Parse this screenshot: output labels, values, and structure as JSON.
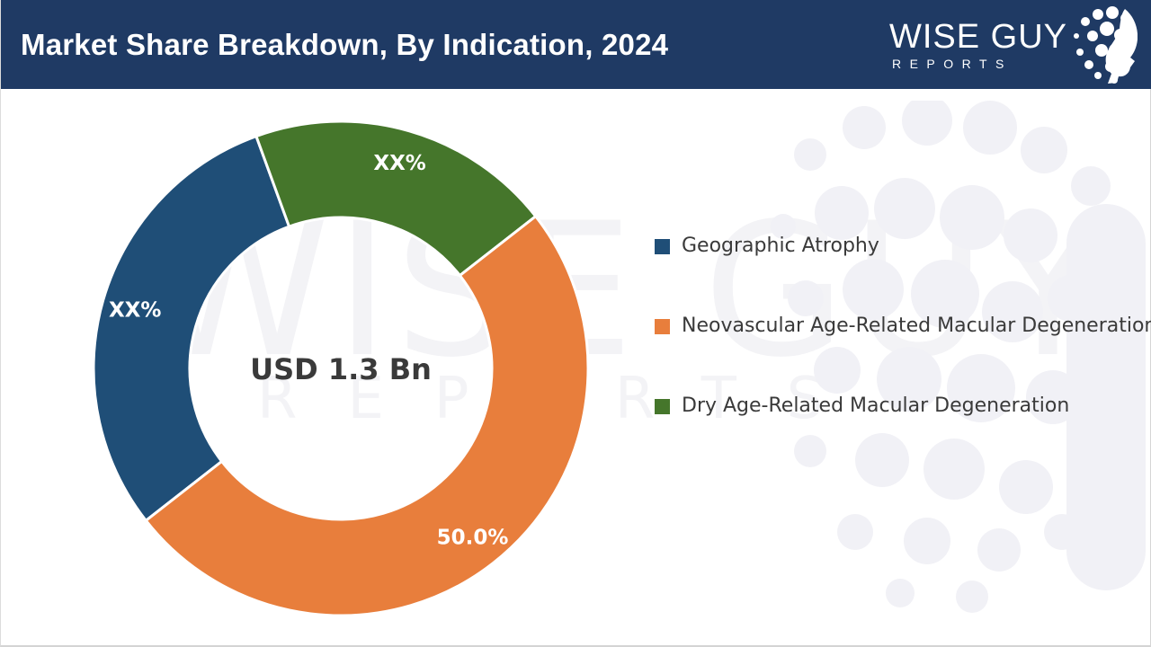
{
  "header": {
    "title": "Market Share Breakdown, By Indication, 2024"
  },
  "logo": {
    "line1": "WISE GUY",
    "line2": "REPORTS",
    "icon": "dotted-head-profile-icon"
  },
  "watermark": {
    "line1": "WISE GUY",
    "line2": "REPORTS",
    "icon": "dotted-head-profile-watermark"
  },
  "chart_data": {
    "type": "pie",
    "subtype": "donut",
    "title": "Market Share Breakdown, By Indication, 2024",
    "center_label": "USD 1.3 Bn",
    "legend_position": "right",
    "start_angle_deg": 232,
    "draw_order": [
      0,
      2,
      1
    ],
    "slices": [
      {
        "id": "geographic-atrophy",
        "label": "Geographic Atrophy",
        "value": 30,
        "pct_label": "XX%",
        "color": "#1f4e77"
      },
      {
        "id": "neovascular-amd",
        "label": "Neovascular Age-Related Macular Degeneration",
        "value": 50,
        "pct_label": "50.0%",
        "color": "#e87e3c"
      },
      {
        "id": "dry-amd",
        "label": "Dry Age-Related Macular Degeneration",
        "value": 20,
        "pct_label": "XX%",
        "color": "#45762b"
      }
    ],
    "colors": {
      "header_bg": "#1f3a64",
      "text_dark": "#3a3a3a",
      "watermark": "#f3f3f6",
      "separator": "#ffffff"
    }
  }
}
